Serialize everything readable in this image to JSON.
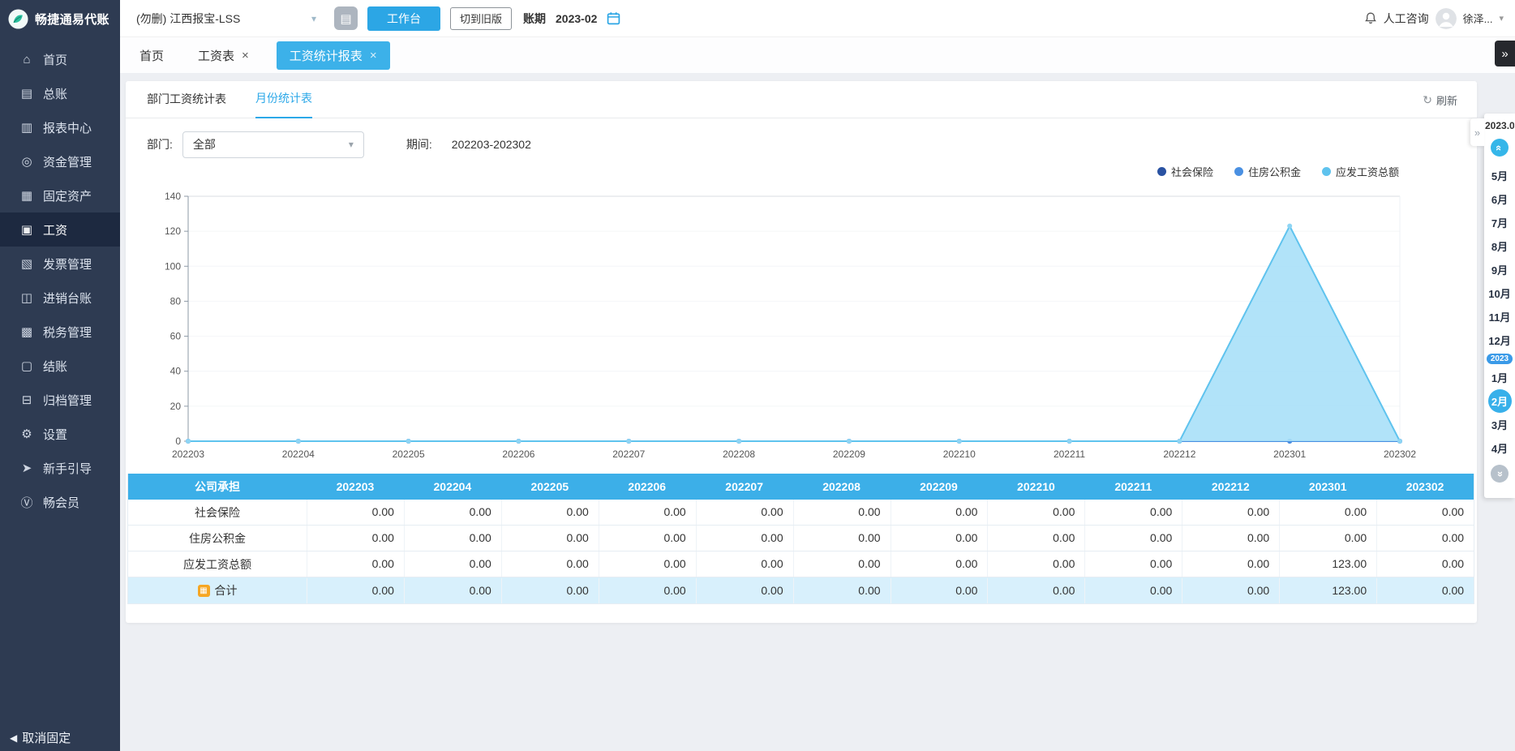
{
  "app": {
    "brand": "畅捷通易代账",
    "pin_label": "取消固定"
  },
  "sidebar": {
    "items": [
      {
        "icon": "home",
        "label": "首页",
        "active": false
      },
      {
        "icon": "general-ledger",
        "label": "总账",
        "active": false
      },
      {
        "icon": "report-center",
        "label": "报表中心",
        "active": false
      },
      {
        "icon": "funds",
        "label": "资金管理",
        "active": false
      },
      {
        "icon": "fixed-assets",
        "label": "固定资产",
        "active": false
      },
      {
        "icon": "salary",
        "label": "工资",
        "active": true
      },
      {
        "icon": "invoice",
        "label": "发票管理",
        "active": false
      },
      {
        "icon": "purchase-sales-ledger",
        "label": "进销台账",
        "active": false
      },
      {
        "icon": "tax",
        "label": "税务管理",
        "active": false
      },
      {
        "icon": "closing",
        "label": "结账",
        "active": false
      },
      {
        "icon": "archive",
        "label": "归档管理",
        "active": false
      },
      {
        "icon": "settings",
        "label": "设置",
        "active": false
      },
      {
        "icon": "beginner-guide",
        "label": "新手引导",
        "active": false
      },
      {
        "icon": "member",
        "label": "畅会员",
        "active": false
      }
    ]
  },
  "topbar": {
    "company": "(勿删) 江西报宝-LSS",
    "workbench": "工作台",
    "switch_old": "切到旧版",
    "period_label": "账期",
    "period_value": "2023-02",
    "consult": "人工咨询",
    "username": "徐泽..."
  },
  "right_drawer": {
    "icon": "»"
  },
  "tabs": [
    {
      "label": "首页",
      "closable": false,
      "active": false
    },
    {
      "label": "工资表",
      "closable": true,
      "active": false
    },
    {
      "label": "工资统计报表",
      "closable": true,
      "active": true
    }
  ],
  "subtabs": [
    {
      "label": "部门工资统计表",
      "active": false
    },
    {
      "label": "月份统计表",
      "active": true
    }
  ],
  "toolbar": {
    "refresh": "刷新"
  },
  "filters": {
    "dept_label": "部门:",
    "dept_value": "全部",
    "period_label": "期间:",
    "period_value": "202203-202302"
  },
  "chart_data": {
    "type": "area",
    "title": "",
    "xlabel": "",
    "ylabel": "",
    "grid": true,
    "legend_position": "top-right",
    "x": [
      "202203",
      "202204",
      "202205",
      "202206",
      "202207",
      "202208",
      "202209",
      "202210",
      "202211",
      "202212",
      "202301",
      "202302"
    ],
    "ylim": [
      0,
      140
    ],
    "yticks": [
      0,
      20,
      40,
      60,
      80,
      100,
      120,
      140
    ],
    "series": [
      {
        "name": "社会保险",
        "color": "#2a52a2",
        "values": [
          0,
          0,
          0,
          0,
          0,
          0,
          0,
          0,
          0,
          0,
          0,
          0
        ]
      },
      {
        "name": "住房公积金",
        "color": "#4a90e2",
        "values": [
          0,
          0,
          0,
          0,
          0,
          0,
          0,
          0,
          0,
          0,
          0,
          0
        ]
      },
      {
        "name": "应发工资总额",
        "color": "#5fc3ee",
        "fill": "#a9e0f8",
        "area": true,
        "values": [
          0,
          0,
          0,
          0,
          0,
          0,
          0,
          0,
          0,
          0,
          123,
          0
        ]
      }
    ]
  },
  "table": {
    "columns": [
      "公司承担",
      "202203",
      "202204",
      "202205",
      "202206",
      "202207",
      "202208",
      "202209",
      "202210",
      "202211",
      "202212",
      "202301",
      "202302"
    ],
    "rows": [
      {
        "label": "社会保险",
        "total": false,
        "values": [
          "0.00",
          "0.00",
          "0.00",
          "0.00",
          "0.00",
          "0.00",
          "0.00",
          "0.00",
          "0.00",
          "0.00",
          "0.00",
          "0.00"
        ]
      },
      {
        "label": "住房公积金",
        "total": false,
        "values": [
          "0.00",
          "0.00",
          "0.00",
          "0.00",
          "0.00",
          "0.00",
          "0.00",
          "0.00",
          "0.00",
          "0.00",
          "0.00",
          "0.00"
        ]
      },
      {
        "label": "应发工资总额",
        "total": false,
        "values": [
          "0.00",
          "0.00",
          "0.00",
          "0.00",
          "0.00",
          "0.00",
          "0.00",
          "0.00",
          "0.00",
          "0.00",
          "123.00",
          "0.00"
        ]
      },
      {
        "label": "合计",
        "total": true,
        "values": [
          "0.00",
          "0.00",
          "0.00",
          "0.00",
          "0.00",
          "0.00",
          "0.00",
          "0.00",
          "0.00",
          "0.00",
          "123.00",
          "0.00"
        ]
      }
    ]
  },
  "month_panel": {
    "header": "2023.0",
    "expand_icon": "»",
    "prev_year_months": [
      "5月",
      "6月",
      "7月",
      "8月",
      "9月",
      "10月",
      "11月",
      "12月"
    ],
    "year_badge": "2023",
    "current_year_months": [
      "1月",
      "2月",
      "3月",
      "4月"
    ],
    "active_month": "2月"
  },
  "colors": {
    "primary": "#2ca6e5",
    "active_tab": "#3cb1e9",
    "table_header": "#3cafe8",
    "sidebar_bg": "#2e3b52",
    "total_row_bg": "#d8f0fc"
  }
}
